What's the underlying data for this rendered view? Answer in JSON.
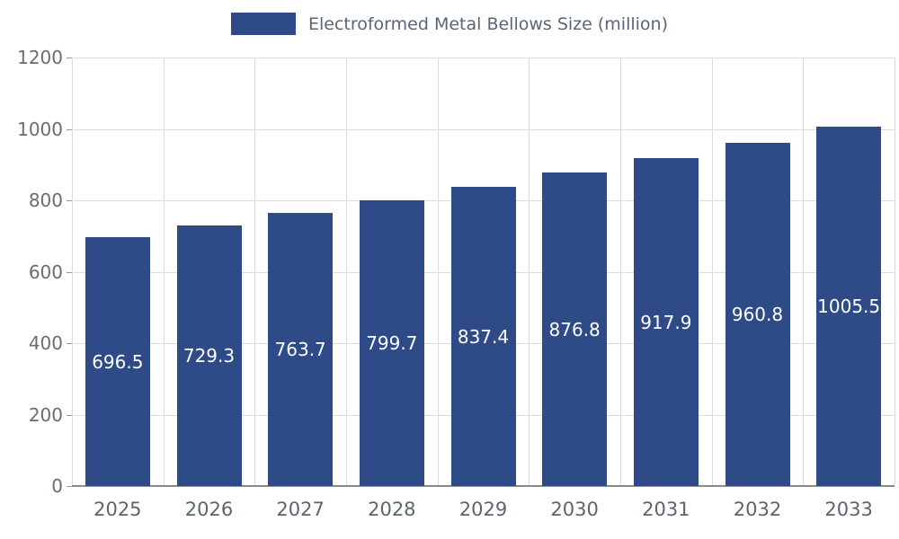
{
  "chart_data": {
    "type": "bar",
    "title": "Electroformed Metal Bellows Size (million)",
    "legend": [
      "Electroformed Metal Bellows Size (million)"
    ],
    "legend_position": "top",
    "categories": [
      "2025",
      "2026",
      "2027",
      "2028",
      "2029",
      "2030",
      "2031",
      "2032",
      "2033"
    ],
    "values": [
      696.5,
      729.3,
      763.7,
      799.7,
      837.4,
      876.8,
      917.9,
      960.8,
      1005.5
    ],
    "xlabel": "",
    "ylabel": "",
    "ylim": [
      0,
      1200
    ],
    "yticks": [
      0,
      200,
      400,
      600,
      800,
      1000,
      1200
    ],
    "grid": true,
    "colors": {
      "bar": "#2f4b87",
      "bar_value_label": "#ffffff",
      "grid_line": "#dcdcdc",
      "axis_line": "#8a8a8a",
      "axis_text": "#666d75",
      "legend_text": "#5a6673",
      "background": "#ffffff"
    }
  }
}
